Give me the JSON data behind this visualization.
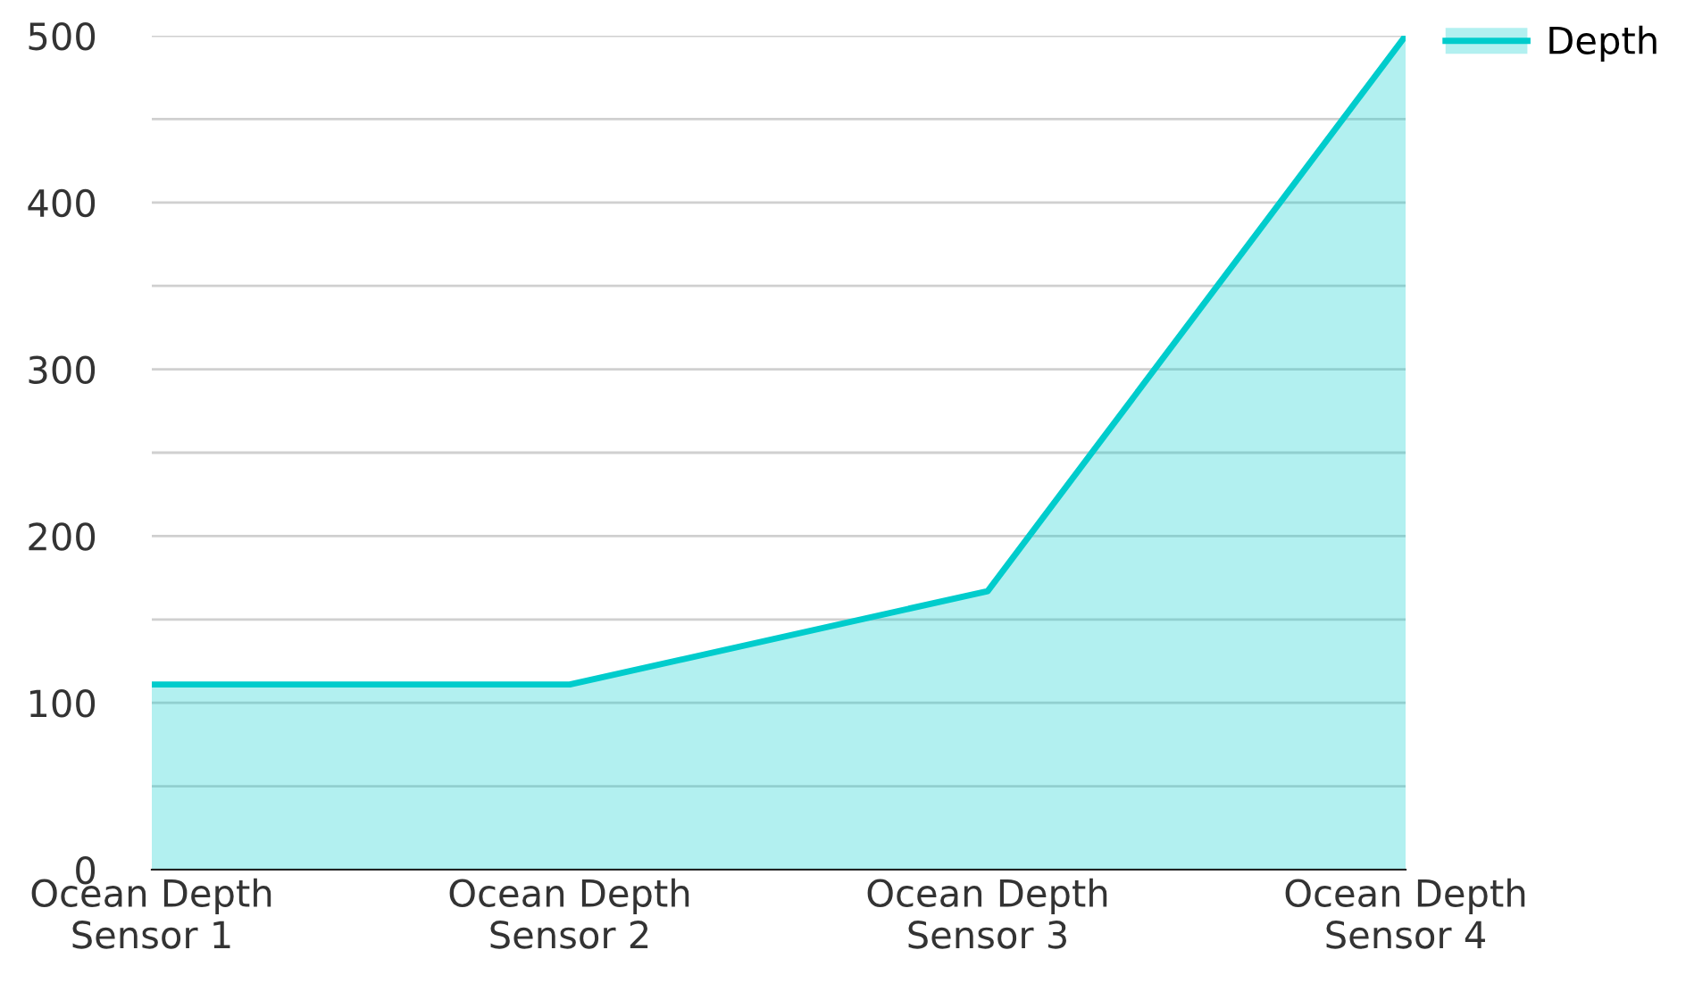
{
  "chart_data": {
    "type": "area",
    "categories": [
      "Ocean Depth\nSensor 1",
      "Ocean Depth\nSensor 2",
      "Ocean Depth\nSensor 3",
      "Ocean Depth\nSensor 4"
    ],
    "series": [
      {
        "name": "Depth",
        "color": "#00cccc",
        "values": [
          111,
          111,
          167,
          500
        ]
      }
    ],
    "ylim": [
      0,
      500
    ],
    "yticks": [
      0,
      {
        "value": 50,
        "label": null
      },
      100,
      {
        "value": 150,
        "label": null
      },
      200,
      {
        "value": 250,
        "label": null
      },
      300,
      {
        "value": 350,
        "label": null
      },
      400,
      {
        "value": 450,
        "label": null
      },
      500
    ],
    "grid": "y",
    "legend": "top right"
  }
}
